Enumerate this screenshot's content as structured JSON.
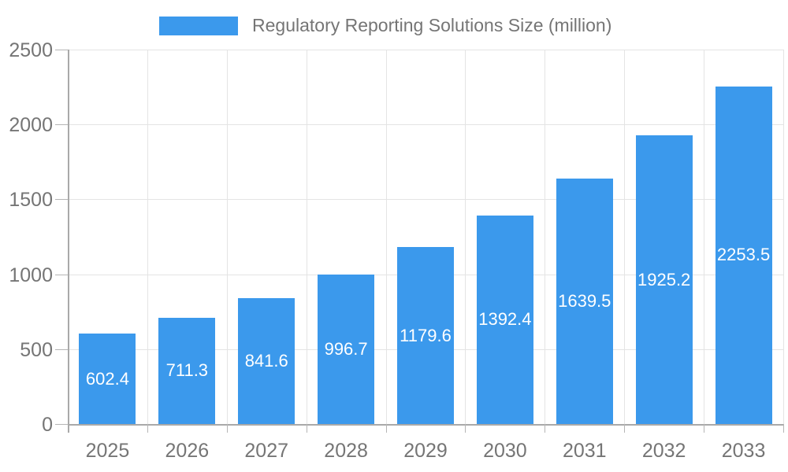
{
  "legend": {
    "label": "Regulatory Reporting Solutions Size (million)"
  },
  "chart_data": {
    "type": "bar",
    "title": "",
    "xlabel": "",
    "ylabel": "",
    "categories": [
      "2025",
      "2026",
      "2027",
      "2028",
      "2029",
      "2030",
      "2031",
      "2032",
      "2033"
    ],
    "series": [
      {
        "name": "Regulatory Reporting Solutions Size (million)",
        "values": [
          602.4,
          711.3,
          841.6,
          996.7,
          1179.6,
          1392.4,
          1639.5,
          1925.2,
          2253.5
        ]
      }
    ],
    "value_labels": [
      "602.4",
      "711.3",
      "841.6",
      "996.7",
      "1179.6",
      "1392.4",
      "1639.5",
      "1925.2",
      "2253.5"
    ],
    "ylim": [
      0,
      2500
    ],
    "y_ticks": [
      0,
      500,
      1000,
      1500,
      2000,
      2500
    ],
    "grid": true,
    "legend_position": "top",
    "value_label_position": "inside-center"
  },
  "colors": {
    "bar": "#3b99ec",
    "grid": "#e4e4e4",
    "axis": "#a9a9a9",
    "tick": "#b5b5b5",
    "text": "#757575",
    "value_label": "#ffffff",
    "background": "#ffffff"
  }
}
